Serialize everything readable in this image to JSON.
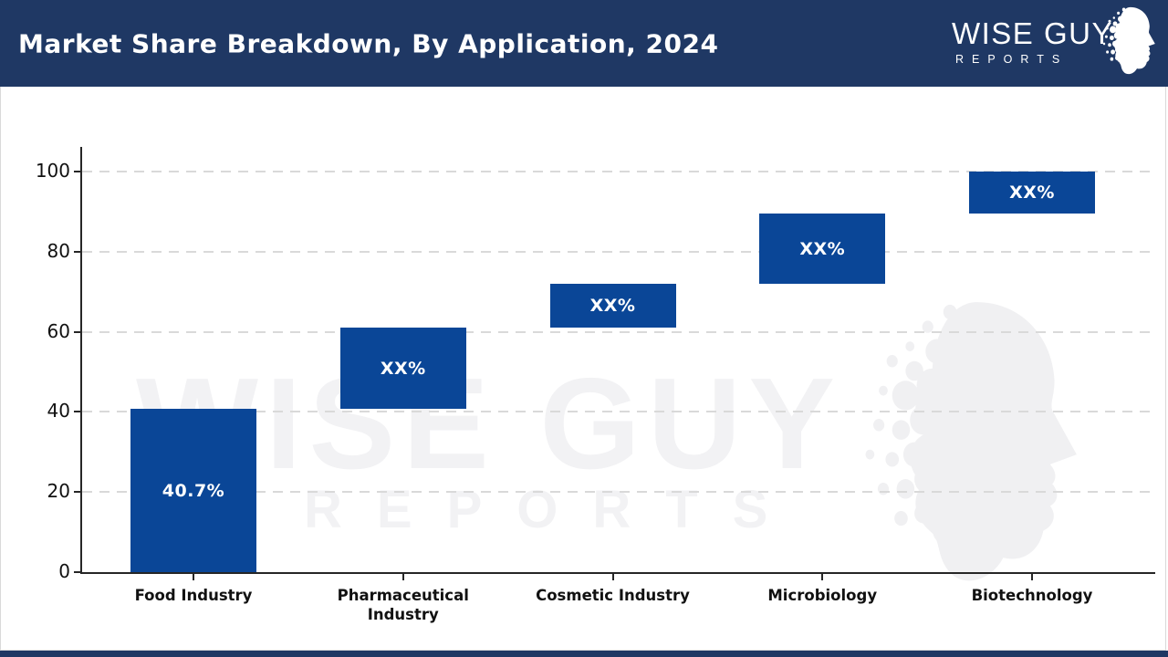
{
  "header": {
    "title": "Market Share Breakdown, By Application, 2024",
    "logo": {
      "line1": "WISE GUY",
      "line2": "REPORTS"
    }
  },
  "watermark": {
    "line1": "WISE GUY",
    "line2": "REPORTS"
  },
  "colors": {
    "header_bg": "#1f3864",
    "bar": "#0a4697",
    "grid": "#d9d9d9",
    "watermark": "#f2f2f4",
    "axis_text": "#111111",
    "bar_label_text": "#ffffff"
  },
  "chart_data": {
    "type": "bar",
    "subtype": "floating-waterfall",
    "title": "Market Share Breakdown, By Application, 2024",
    "categories": [
      "Food Industry",
      "Pharmaceutical Industry",
      "Cosmetic Industry",
      "Microbiology",
      "Biotechnology"
    ],
    "series": [
      {
        "name": "Market Share (%)",
        "ranges": [
          [
            0,
            40.7
          ],
          [
            40.7,
            61
          ],
          [
            61,
            72
          ],
          [
            72,
            89.5
          ],
          [
            89.5,
            100
          ]
        ]
      }
    ],
    "bar_labels": [
      "40.7%",
      "XX%",
      "XX%",
      "XX%",
      "XX%"
    ],
    "xlabel": "",
    "ylabel": "",
    "ylim": [
      0,
      100
    ],
    "yticks": [
      0,
      20,
      40,
      60,
      80,
      100
    ],
    "grid": "horizontal dashed",
    "legend": "none"
  }
}
